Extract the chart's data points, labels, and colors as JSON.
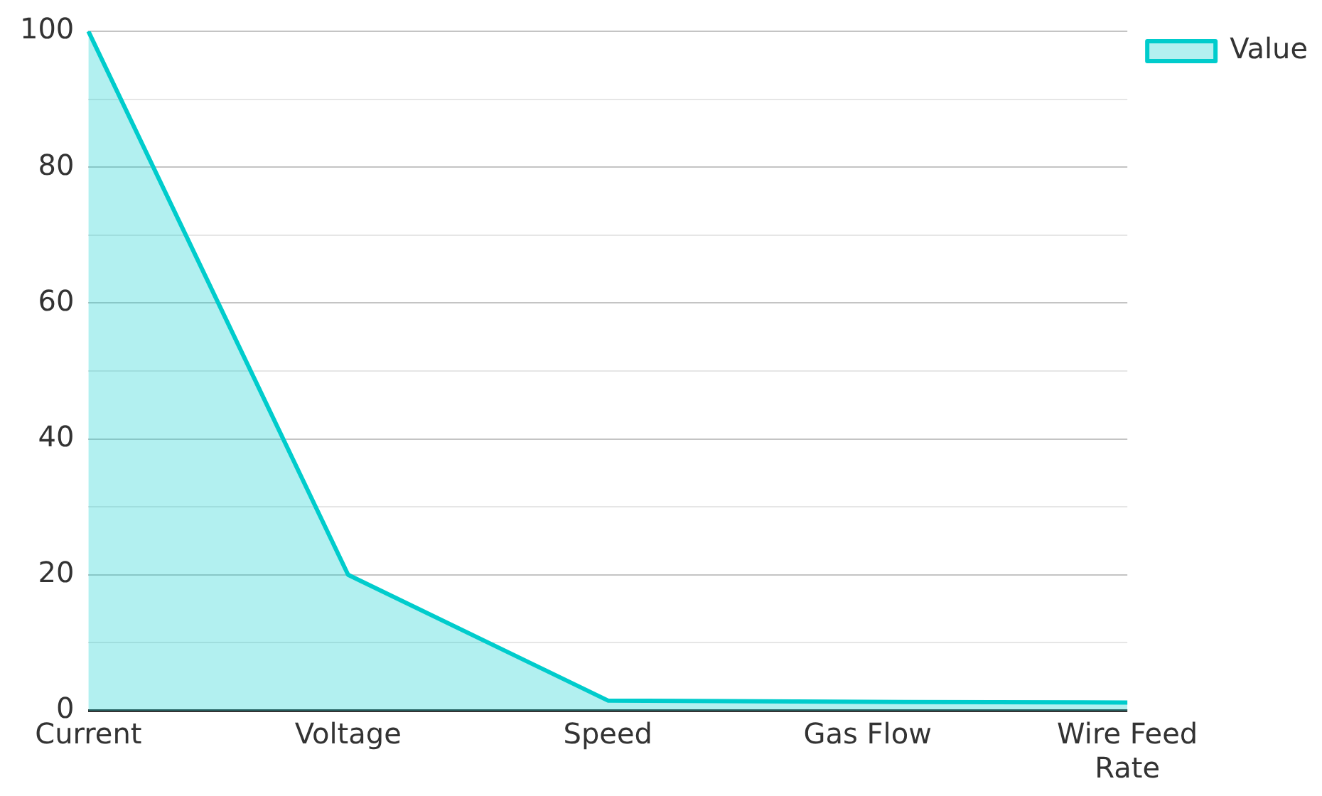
{
  "chart_data": {
    "type": "area",
    "categories": [
      "Current",
      "Voltage",
      "Speed",
      "Gas Flow",
      "Wire Feed Rate"
    ],
    "series": [
      {
        "name": "Value",
        "color": "#00cccc",
        "values": [
          100,
          20,
          1.5,
          1.3,
          1.2
        ]
      }
    ],
    "ylim": [
      0,
      100
    ],
    "yticks": [
      0,
      {
        "value": 10,
        "label": null
      },
      20,
      {
        "value": 30,
        "label": null
      },
      40,
      {
        "value": 50,
        "label": null
      },
      60,
      {
        "value": 70,
        "label": null
      },
      80,
      {
        "value": 90,
        "label": null
      },
      100
    ],
    "grid": "y",
    "legend": "top right"
  }
}
